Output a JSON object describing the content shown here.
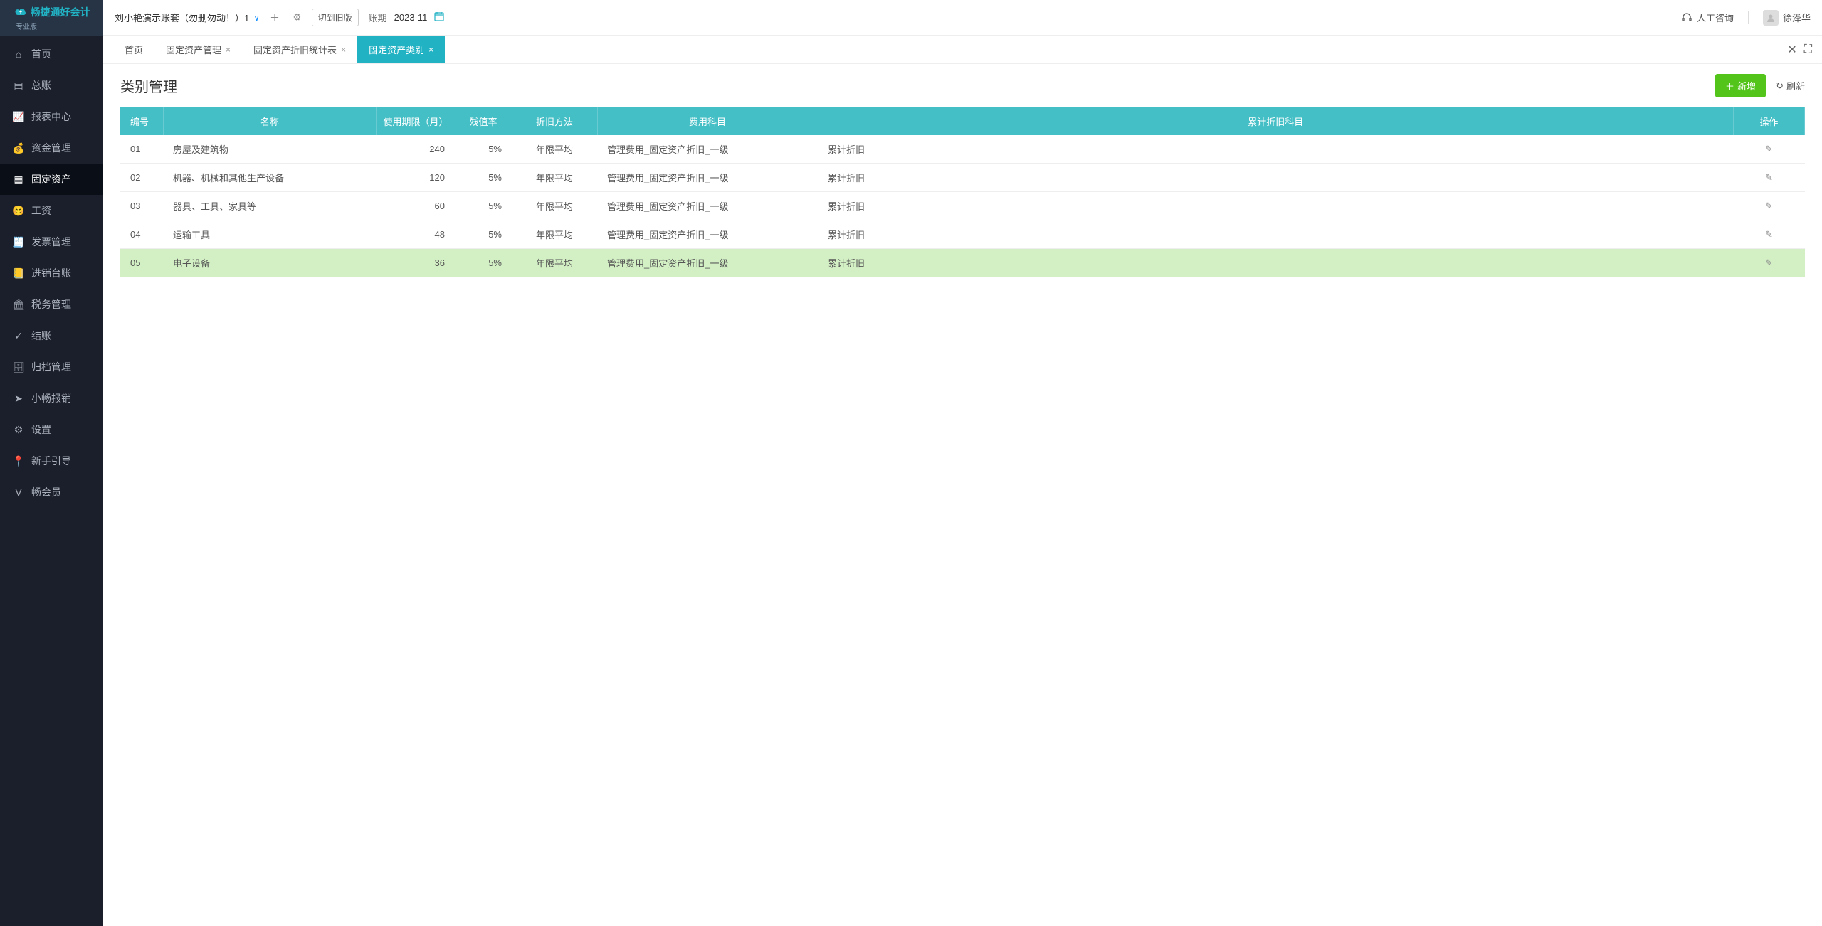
{
  "brand": {
    "name": "畅捷通好会计",
    "sub": "专业版"
  },
  "sidebar": {
    "items": [
      {
        "label": "首页",
        "icon": "⌂"
      },
      {
        "label": "总账",
        "icon": "▤"
      },
      {
        "label": "报表中心",
        "icon": "📈"
      },
      {
        "label": "资金管理",
        "icon": "💰"
      },
      {
        "label": "固定资产",
        "icon": "▦"
      },
      {
        "label": "工资",
        "icon": "😊"
      },
      {
        "label": "发票管理",
        "icon": "🧾"
      },
      {
        "label": "进销台账",
        "icon": "📒"
      },
      {
        "label": "税务管理",
        "icon": "🏛"
      },
      {
        "label": "结账",
        "icon": "✓"
      },
      {
        "label": "归档管理",
        "icon": "🗄"
      },
      {
        "label": "小畅报销",
        "icon": "➤"
      },
      {
        "label": "设置",
        "icon": "⚙"
      },
      {
        "label": "新手引导",
        "icon": "📍"
      },
      {
        "label": "畅会员",
        "icon": "V"
      }
    ],
    "active_index": 4
  },
  "topbar": {
    "account": "刘小艳演示账套（勿删勿动！）1",
    "switch_label": "切到旧版",
    "period_label": "账期",
    "period_value": "2023-11",
    "support_label": "人工咨询",
    "user_name": "徐泽华"
  },
  "tabs": {
    "items": [
      {
        "label": "首页",
        "closable": false
      },
      {
        "label": "固定资产管理",
        "closable": true
      },
      {
        "label": "固定资产折旧统计表",
        "closable": true
      },
      {
        "label": "固定资产类别",
        "closable": true
      }
    ],
    "active_index": 3
  },
  "page": {
    "title": "类别管理",
    "add_label": "新增",
    "refresh_label": "刷新"
  },
  "table": {
    "columns": {
      "id": "编号",
      "name": "名称",
      "life": "使用期限（月）",
      "rate": "残值率",
      "method": "折旧方法",
      "cost_subject": "费用科目",
      "dep_subject": "累计折旧科目",
      "op": "操作"
    },
    "rows": [
      {
        "id": "01",
        "name": "房屋及建筑物",
        "life": "240",
        "rate": "5%",
        "method": "年限平均",
        "cost": "管理费用_固定资产折旧_一级",
        "dep": "累计折旧"
      },
      {
        "id": "02",
        "name": "机器、机械和其他生产设备",
        "life": "120",
        "rate": "5%",
        "method": "年限平均",
        "cost": "管理费用_固定资产折旧_一级",
        "dep": "累计折旧"
      },
      {
        "id": "03",
        "name": "器具、工具、家具等",
        "life": "60",
        "rate": "5%",
        "method": "年限平均",
        "cost": "管理费用_固定资产折旧_一级",
        "dep": "累计折旧"
      },
      {
        "id": "04",
        "name": "运输工具",
        "life": "48",
        "rate": "5%",
        "method": "年限平均",
        "cost": "管理费用_固定资产折旧_一级",
        "dep": "累计折旧"
      },
      {
        "id": "05",
        "name": "电子设备",
        "life": "36",
        "rate": "5%",
        "method": "年限平均",
        "cost": "管理费用_固定资产折旧_一级",
        "dep": "累计折旧"
      }
    ],
    "highlight_index": 4
  },
  "colors": {
    "sidebar_bg": "#1a1f2b",
    "sidebar_active": "#0a0e17",
    "brand": "#21b2c4",
    "table_header": "#44bfc6",
    "row_highlight": "#d3f0c5",
    "primary_btn": "#52c41a"
  }
}
